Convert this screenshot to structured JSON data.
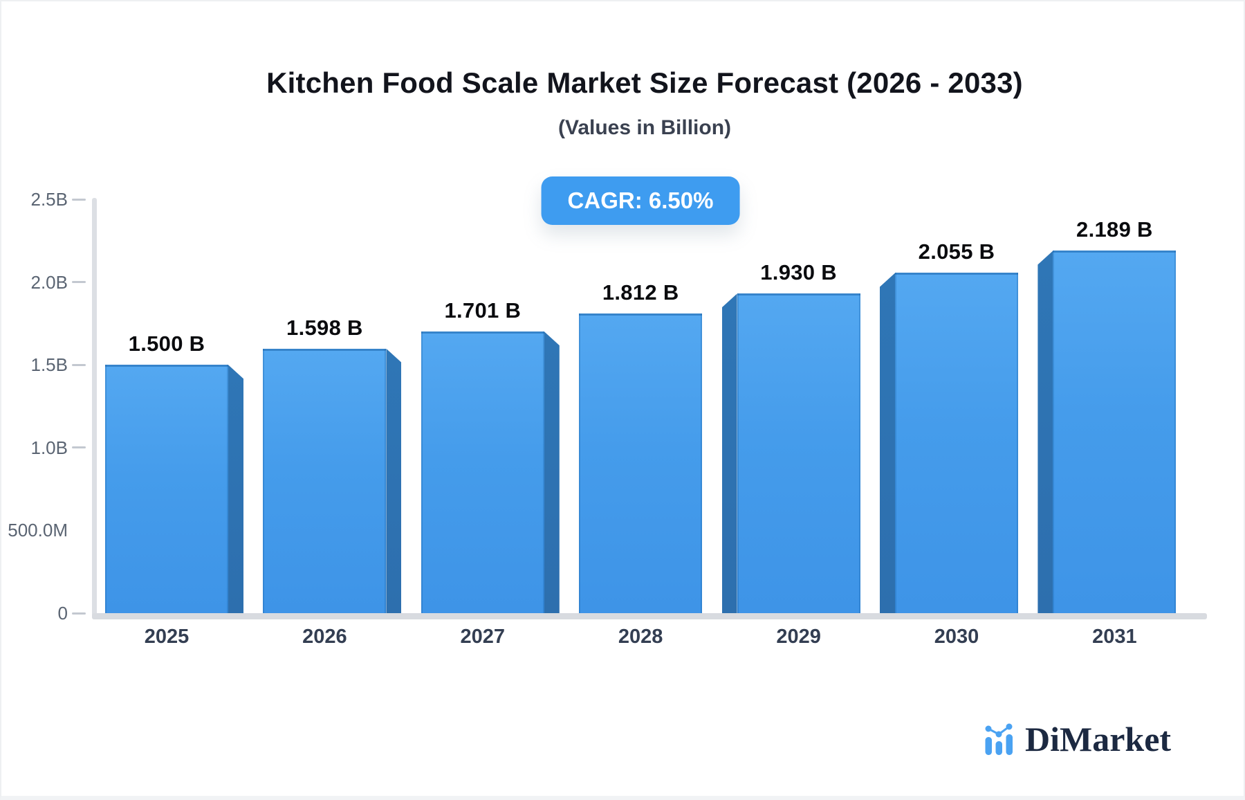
{
  "header": {
    "title": "Kitchen Food Scale Market Size Forecast (2026 - 2033)",
    "subtitle": "(Values in Billion)"
  },
  "badge": {
    "label": "CAGR: 6.50%"
  },
  "chart_data": {
    "type": "bar",
    "title": "Kitchen Food Scale Market Size Forecast (2026 - 2033)",
    "subtitle": "(Values in Billion)",
    "cagr_percent": "6.50%",
    "categories": [
      "2025",
      "2026",
      "2027",
      "2028",
      "2029",
      "2030",
      "2031"
    ],
    "values": [
      1.5,
      1.598,
      1.701,
      1.812,
      1.93,
      2.055,
      2.189
    ],
    "value_labels": [
      "1.500 B",
      "1.598 B",
      "1.701 B",
      "1.812 B",
      "1.930 B",
      "2.055 B",
      "2.189 B"
    ],
    "ylim": [
      0,
      2.5
    ],
    "y_ticks": [
      {
        "label": "2.5B",
        "value": 2.5,
        "dash": true
      },
      {
        "label": "2.0B",
        "value": 2.0,
        "dash": true
      },
      {
        "label": "1.5B",
        "value": 1.5,
        "dash": true
      },
      {
        "label": "1.0B",
        "value": 1.0,
        "dash": true
      },
      {
        "label": "500.0M",
        "value": 0.5,
        "dash": false
      },
      {
        "label": "0",
        "value": 0,
        "dash": true
      }
    ],
    "grid": false,
    "legend": "none",
    "bevel_side": [
      "right",
      "right",
      "right",
      "none",
      "left",
      "left",
      "left"
    ],
    "colors": {
      "bar_top": "#54A8F1",
      "bar_bottom": "#3E94E7",
      "bar_edge": "#2E7DC2",
      "bar_side_facet": "#2D70AE",
      "badge_bg": "#3E9CF0",
      "axis": "#DCDFE4",
      "tick_dash": "#C3C8D0",
      "value_label": "#0A0B0E",
      "x_label": "#333E52",
      "y_label": "#5A6472",
      "logo_blue": "#4AA2F2",
      "logo_navy": "#1C2941"
    }
  },
  "logo": {
    "text": "DiMarket",
    "icon": "mini-bar-chart-logo-icon"
  }
}
